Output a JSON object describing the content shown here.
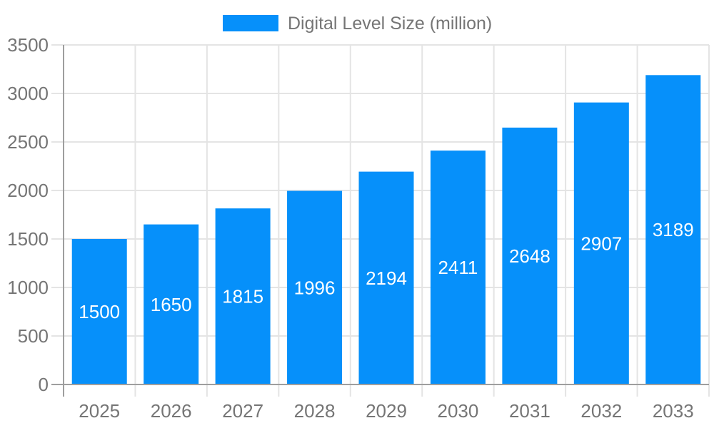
{
  "chart_data": {
    "type": "bar",
    "title": "Digital Level Size (million)",
    "categories": [
      "2025",
      "2026",
      "2027",
      "2028",
      "2029",
      "2030",
      "2031",
      "2032",
      "2033"
    ],
    "series": [
      {
        "name": "Digital Level Size (million)",
        "values": [
          1500,
          1650,
          1815,
          1996,
          2194,
          2411,
          2648,
          2907,
          3189
        ]
      }
    ],
    "bar_value_labels": [
      "1500",
      "1650",
      "1815",
      "1996",
      "2194",
      "2411",
      "2648",
      "2907",
      "3189"
    ],
    "xlabel": "",
    "ylabel": "",
    "ylim": [
      0,
      3500
    ],
    "ytick_step": 500,
    "ytick_values": [
      0,
      500,
      1000,
      1500,
      2000,
      2500,
      3000,
      3500
    ],
    "grid": true,
    "legend_position": "top-center",
    "bar_labels_visible": true,
    "colors": {
      "bar": "#0690FA",
      "grid": "#e4e4e4",
      "axis": "#9e9e9e",
      "tick_label": "#757575",
      "legend_text": "#757575",
      "bar_label": "#ffffff",
      "background": "#ffffff"
    }
  }
}
